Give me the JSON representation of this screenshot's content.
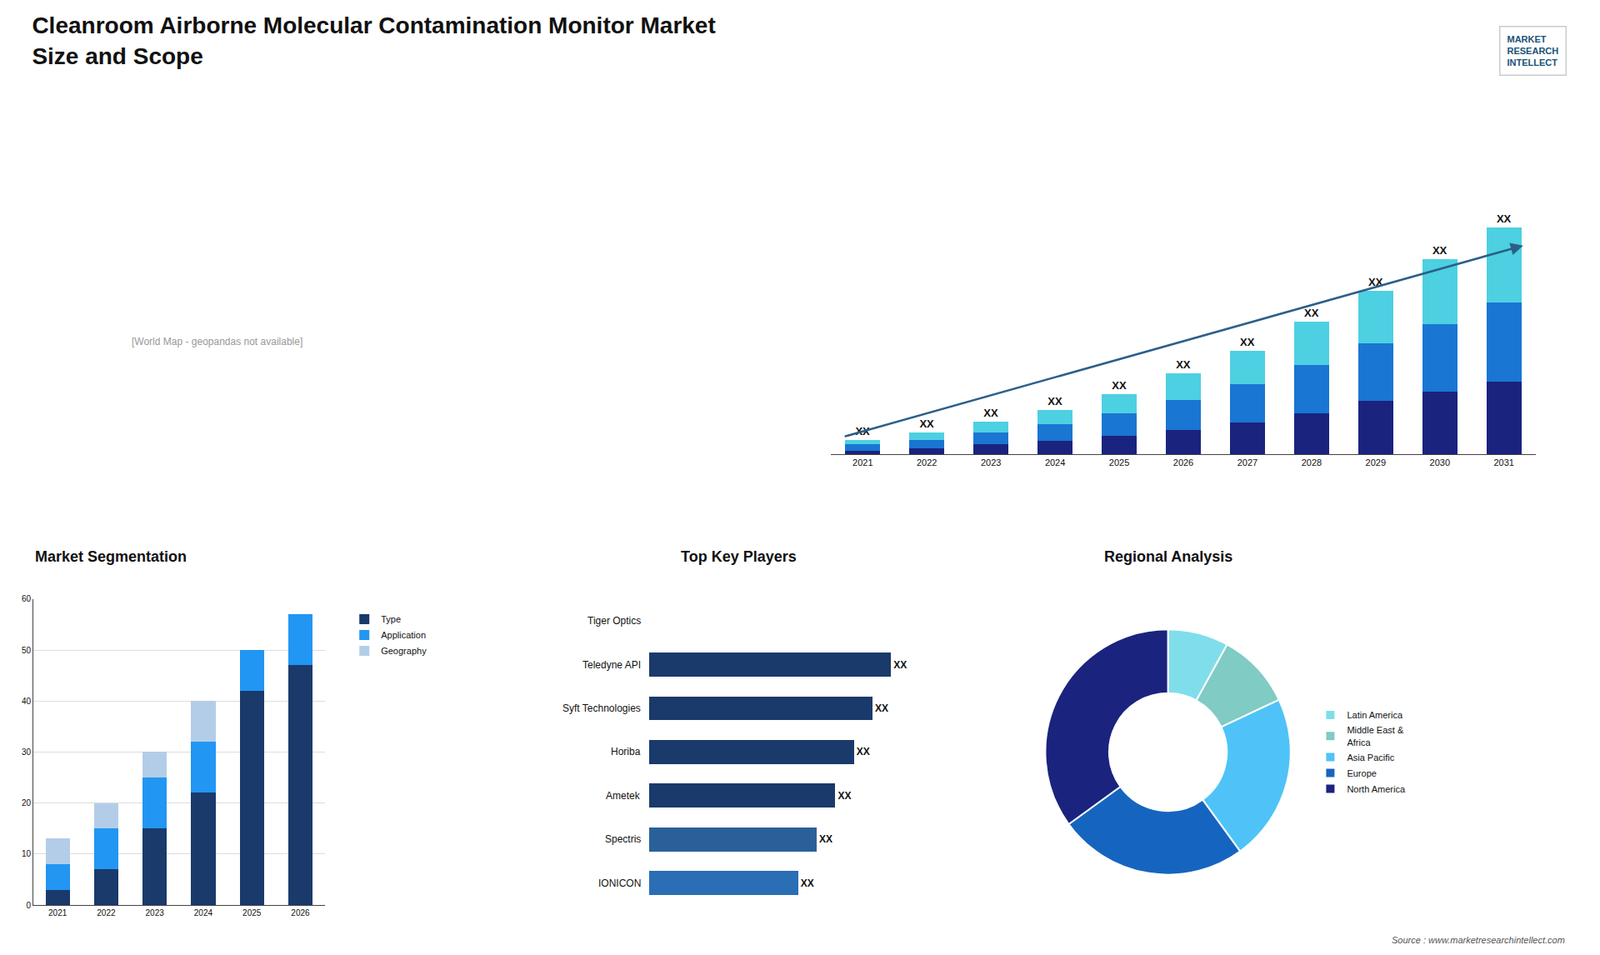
{
  "title": "Cleanroom Airborne Molecular Contamination Monitor Market",
  "subtitle": "Size and Scope",
  "annotations": [
    "[World Map - geopandas not available]",
    "MARKET\nRESEARCH\nINTELLECT",
    "Source : www.marketresearchintellect.com"
  ],
  "chart_data": [
    {
      "type": "bar",
      "stacked": true,
      "categories": [
        "2021",
        "2022",
        "2023",
        "2024",
        "2025",
        "2026",
        "2027",
        "2028",
        "2029",
        "2030",
        "2031"
      ],
      "series": [
        {
          "color": "#1a237e",
          "values": [
            1.5,
            2.5,
            4,
            5.5,
            7.5,
            10,
            13,
            17,
            22,
            26,
            30
          ]
        },
        {
          "color": "#1976d2",
          "values": [
            2.5,
            3.5,
            5,
            7,
            9.5,
            12.5,
            16,
            20,
            24,
            28,
            33
          ]
        },
        {
          "color": "#4dd0e1",
          "values": [
            2,
            3,
            4.5,
            6,
            8,
            11,
            14,
            18,
            22,
            27,
            31
          ]
        }
      ],
      "annotations": [
        "XX",
        "XX",
        "XX",
        "XX",
        "XX",
        "XX",
        "XX",
        "XX",
        "XX",
        "XX",
        "XX"
      ],
      "ylim": [
        0,
        120.32
      ],
      "tick_labels": "x",
      "grid": false
    },
    {
      "type": "bar",
      "stacked": true,
      "title": "Market Segmentation",
      "categories": [
        "2021",
        "2022",
        "2023",
        "2024",
        "2025",
        "2026"
      ],
      "series": [
        {
          "name": "Type",
          "color": "#1a3a6b",
          "values": [
            3,
            7,
            15,
            22,
            42,
            47
          ]
        },
        {
          "name": "Application",
          "color": "#2196f3",
          "values": [
            5,
            8,
            10,
            10,
            8,
            10
          ]
        },
        {
          "name": "Geography",
          "color": "#b3cde8",
          "values": [
            5,
            5,
            5,
            8,
            0,
            0
          ]
        }
      ],
      "ylim": [
        0,
        60
      ],
      "yticks": [
        0,
        10,
        20,
        30,
        40,
        50,
        60
      ],
      "grid": true,
      "legend": "right"
    },
    {
      "type": "bar",
      "orientation": "horizontal",
      "title": "Top Key Players",
      "categories": [
        "Tiger Optics",
        "Teledyne API",
        "Syft Technologies",
        "Horiba",
        "Ametek",
        "Spectris",
        "IONICON"
      ],
      "values": [
        0,
        65,
        60,
        55,
        50,
        45,
        40
      ],
      "value_labels": [
        null,
        "XX",
        "XX",
        "XX",
        "XX",
        "XX",
        "XX"
      ],
      "colors": [
        "#ffffff",
        "#1a3a6b",
        "#1a3a6b",
        "#1a3a6b",
        "#1a3a6b",
        "#2a6099",
        "#2a6eb5"
      ],
      "xlim": [
        -42,
        90
      ],
      "tick_labels": false
    },
    {
      "type": "donut",
      "title": "Regional Analysis",
      "categories": [
        "Latin America",
        "Middle East &\nAfrica",
        "Asia Pacific",
        "Europe",
        "North America"
      ],
      "values": [
        8,
        10,
        22,
        25,
        35
      ],
      "colors": [
        "#80deea",
        "#80cbc4",
        "#4fc3f7",
        "#1565c0",
        "#1a237e"
      ],
      "legend": "right",
      "data_labels": false
    }
  ]
}
